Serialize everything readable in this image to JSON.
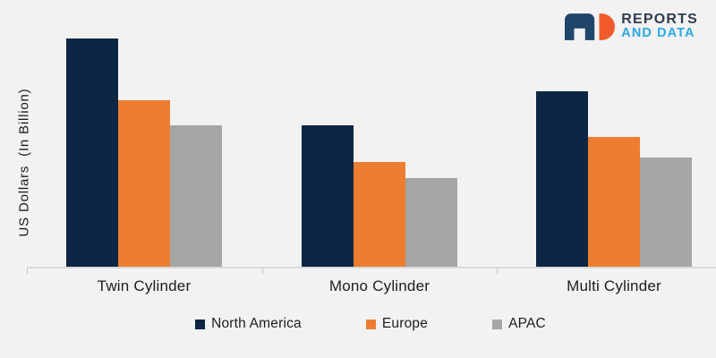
{
  "logo": {
    "line1": "REPORTS",
    "line2": "AND DATA",
    "colors": {
      "mark_r": "#20456b",
      "mark_d": "#f15b2c",
      "line1": "#2f3c4e",
      "line2": "#29a9e2"
    }
  },
  "chart_data": {
    "type": "bar",
    "title": "",
    "xlabel": "",
    "ylabel": "US Dollars  (In Billion)",
    "categories": [
      "Twin Cylinder",
      "Mono Cylinder",
      "Multi Cylinder"
    ],
    "series": [
      {
        "name": "North America",
        "color": "#0d2644",
        "values": [
          100,
          62,
          77
        ]
      },
      {
        "name": "Europe",
        "color": "#ed7d31",
        "values": [
          73,
          46,
          57
        ]
      },
      {
        "name": "APAC",
        "color": "#a6a6a6",
        "values": [
          62,
          39,
          48
        ]
      }
    ],
    "ylim": [
      0,
      108
    ],
    "value_note": "values estimated from bar heights; no numeric axis labels shown",
    "grid": false,
    "legend_position": "bottom",
    "axis_color": "#d9d9d9",
    "background": "#f2f2f2"
  }
}
